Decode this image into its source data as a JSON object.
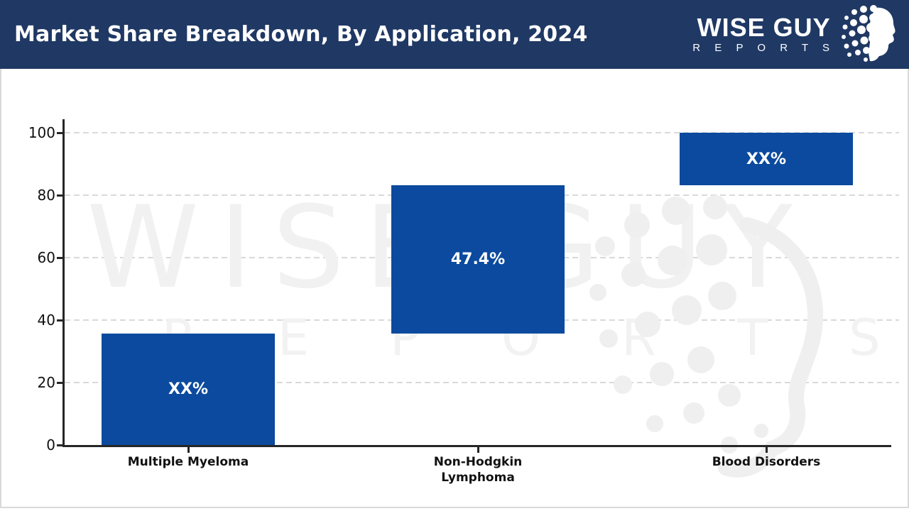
{
  "header": {
    "title": "Market Share Breakdown, By Application, 2024",
    "logo_line1": "WISE GUY",
    "logo_line2": "R E P O R T S"
  },
  "watermark": {
    "line1": "WISE GUY",
    "line2": "R E P O R T S"
  },
  "colors": {
    "header_bg": "#1f3864",
    "bar": "#0b4a9e",
    "axis": "#262626",
    "grid": "#d9d9d9",
    "bar_label": "#ffffff",
    "text": "#111111",
    "watermark": "#f1f1f1",
    "panel_border": "#d9d9d9"
  },
  "chart_data": {
    "type": "bar",
    "subtype": "floating-stacked-waterfall",
    "title": "Market Share Breakdown, By Application, 2024",
    "categories": [
      "Multiple Myeloma",
      "Non-Hodgkin Lymphoma",
      "Blood Disorders"
    ],
    "bars": [
      {
        "category": "Multiple Myeloma",
        "category_lines": [
          "Multiple Myeloma"
        ],
        "base": 0,
        "top": 35.7,
        "value": 35.7,
        "value_label": "XX%"
      },
      {
        "category": "Non-Hodgkin Lymphoma",
        "category_lines": [
          "Non-Hodgkin",
          "Lymphoma"
        ],
        "base": 35.7,
        "top": 83.1,
        "value": 47.4,
        "value_label": "47.4%"
      },
      {
        "category": "Blood Disorders",
        "category_lines": [
          "Blood Disorders"
        ],
        "base": 83.1,
        "top": 100,
        "value": 16.9,
        "value_label": "XX%"
      }
    ],
    "yticks": [
      0,
      20,
      40,
      60,
      80,
      100
    ],
    "ylim": [
      0,
      100
    ],
    "xlabel": "",
    "ylabel": "",
    "grid": "horizontal dashed",
    "legend": "none"
  }
}
